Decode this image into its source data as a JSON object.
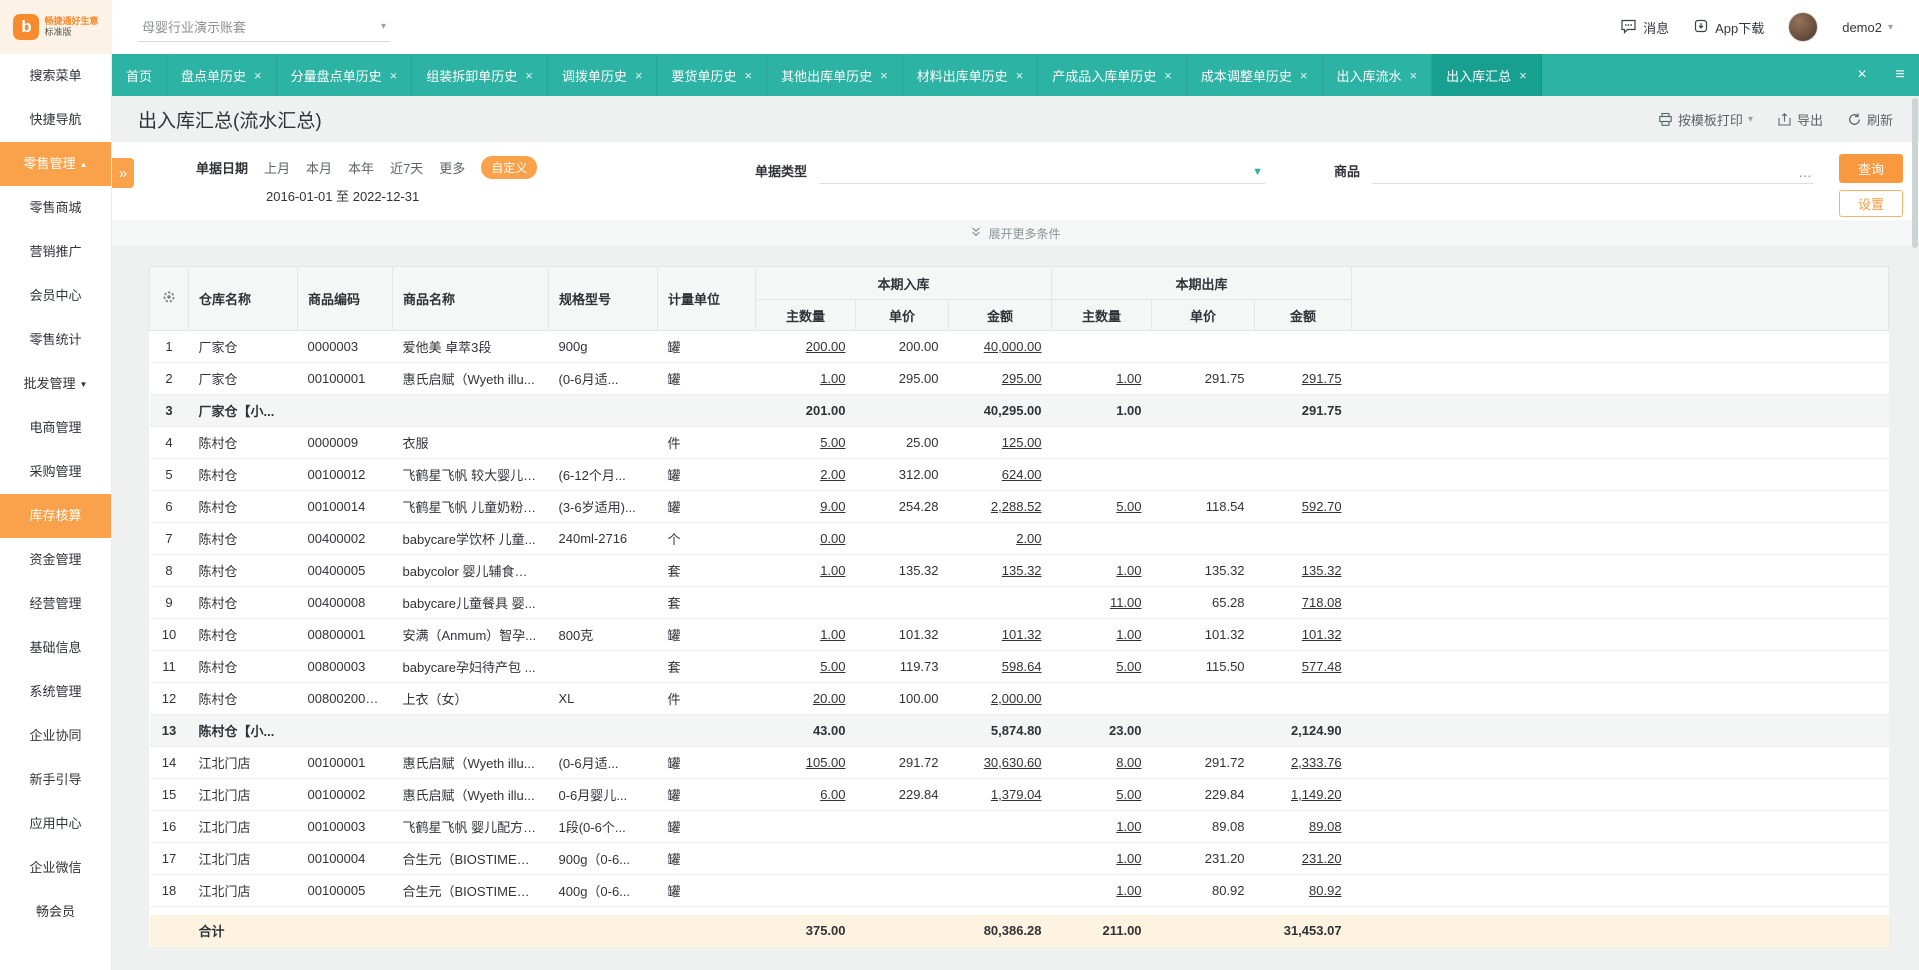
{
  "colors": {
    "accent_teal": "#2db3a4",
    "accent_teal_dark": "#17a090",
    "accent_orange": "#f9a24b"
  },
  "top_bar": {
    "logo_title": "畅捷通好生意",
    "logo_subtitle": "标准版",
    "logo_glyph": "b",
    "account_select": "母婴行业演示账套",
    "message_label": "消息",
    "app_download_label": "App下载",
    "user_name": "demo2"
  },
  "tab_bar": {
    "tabs": [
      {
        "label": "首页",
        "closable": false,
        "active": false
      },
      {
        "label": "盘点单历史",
        "closable": true,
        "active": false
      },
      {
        "label": "分量盘点单历史",
        "closable": true,
        "active": false
      },
      {
        "label": "组装拆卸单历史",
        "closable": true,
        "active": false
      },
      {
        "label": "调拨单历史",
        "closable": true,
        "active": false
      },
      {
        "label": "要货单历史",
        "closable": true,
        "active": false
      },
      {
        "label": "其他出库单历史",
        "closable": true,
        "active": false
      },
      {
        "label": "材料出库单历史",
        "closable": true,
        "active": false
      },
      {
        "label": "产成品入库单历史",
        "closable": true,
        "active": false
      },
      {
        "label": "成本调整单历史",
        "closable": true,
        "active": false
      },
      {
        "label": "出入库流水",
        "closable": true,
        "active": false
      },
      {
        "label": "出入库汇总",
        "closable": true,
        "active": true
      }
    ]
  },
  "sidebar": {
    "items": [
      {
        "label": "搜索菜单",
        "type": "plain"
      },
      {
        "label": "快捷导航",
        "type": "plain"
      },
      {
        "label": "零售管理",
        "type": "group-open"
      },
      {
        "label": "零售商城",
        "type": "sub"
      },
      {
        "label": "营销推广",
        "type": "sub"
      },
      {
        "label": "会员中心",
        "type": "sub"
      },
      {
        "label": "零售统计",
        "type": "sub"
      },
      {
        "label": "批发管理",
        "type": "group-closed"
      },
      {
        "label": "电商管理",
        "type": "plain"
      },
      {
        "label": "采购管理",
        "type": "plain"
      },
      {
        "label": "库存核算",
        "type": "active"
      },
      {
        "label": "资金管理",
        "type": "plain"
      },
      {
        "label": "经营管理",
        "type": "plain"
      },
      {
        "label": "基础信息",
        "type": "plain"
      },
      {
        "label": "系统管理",
        "type": "plain"
      },
      {
        "label": "企业协同",
        "type": "plain"
      },
      {
        "label": "新手引导",
        "type": "plain"
      },
      {
        "label": "应用中心",
        "type": "plain"
      },
      {
        "label": "企业微信",
        "type": "plain"
      },
      {
        "label": "畅会员",
        "type": "plain"
      }
    ]
  },
  "page": {
    "title": "出入库汇总(流水汇总)",
    "toolbar": {
      "print": "按模板打印",
      "export": "导出",
      "refresh": "刷新"
    }
  },
  "filters": {
    "date_label": "单据日期",
    "quick_ranges": [
      "上月",
      "本月",
      "本年",
      "近7天",
      "更多"
    ],
    "custom_label": "自定义",
    "date_range": "2016-01-01 至 2022-12-31",
    "doc_type_label": "单据类型",
    "product_label": "商品",
    "picker_ellipsis": "…",
    "search_button": "查询",
    "settings_button": "设置",
    "expand_more": "展开更多条件"
  },
  "table": {
    "headers": {
      "warehouse": "仓库名称",
      "code": "商品编码",
      "name": "商品名称",
      "spec": "规格型号",
      "unit": "计量单位",
      "in_group": "本期入库",
      "out_group": "本期出库",
      "qty": "主数量",
      "price": "单价",
      "amount": "金额"
    },
    "rows": [
      {
        "no": "1",
        "type": "data",
        "warehouse": "厂家仓",
        "code": "0000003",
        "name": "爱他美 卓萃3段",
        "spec": "900g",
        "unit": "罐",
        "in_qty": "200.00",
        "in_price": "200.00",
        "in_amount": "40,000.00",
        "out_qty": "",
        "out_price": "",
        "out_amount": ""
      },
      {
        "no": "2",
        "type": "data",
        "warehouse": "厂家仓",
        "code": "00100001",
        "name": "惠氏启赋（Wyeth illu...",
        "spec": "(0-6月适...",
        "unit": "罐",
        "in_qty": "1.00",
        "in_price": "295.00",
        "in_amount": "295.00",
        "out_qty": "1.00",
        "out_price": "291.75",
        "out_amount": "291.75"
      },
      {
        "no": "3",
        "type": "subtotal",
        "warehouse": "厂家仓【小...",
        "code": "",
        "name": "",
        "spec": "",
        "unit": "",
        "in_qty": "201.00",
        "in_price": "",
        "in_amount": "40,295.00",
        "out_qty": "1.00",
        "out_price": "",
        "out_amount": "291.75"
      },
      {
        "no": "4",
        "type": "data",
        "warehouse": "陈村仓",
        "code": "0000009",
        "name": "衣服",
        "spec": "",
        "unit": "件",
        "in_qty": "5.00",
        "in_price": "25.00",
        "in_amount": "125.00",
        "out_qty": "",
        "out_price": "",
        "out_amount": ""
      },
      {
        "no": "5",
        "type": "data",
        "warehouse": "陈村仓",
        "code": "00100012",
        "name": "飞鹤星飞帆 较大婴儿配...",
        "spec": "(6-12个月...",
        "unit": "罐",
        "in_qty": "2.00",
        "in_price": "312.00",
        "in_amount": "624.00",
        "out_qty": "",
        "out_price": "",
        "out_amount": ""
      },
      {
        "no": "6",
        "type": "data",
        "warehouse": "陈村仓",
        "code": "00100014",
        "name": "飞鹤星飞帆 儿童奶粉 4...",
        "spec": "(3-6岁适用)...",
        "unit": "罐",
        "in_qty": "9.00",
        "in_price": "254.28",
        "in_amount": "2,288.52",
        "out_qty": "5.00",
        "out_price": "118.54",
        "out_amount": "592.70"
      },
      {
        "no": "7",
        "type": "data",
        "warehouse": "陈村仓",
        "code": "00400002",
        "name": "babycare学饮杯 儿童...",
        "spec": "240ml-2716",
        "unit": "个",
        "in_qty": "0.00",
        "in_price": "",
        "in_amount": "2.00",
        "out_qty": "",
        "out_price": "",
        "out_amount": ""
      },
      {
        "no": "8",
        "type": "data",
        "warehouse": "陈村仓",
        "code": "00400005",
        "name": "babycolor 婴儿辅食机 ...",
        "spec": "",
        "unit": "套",
        "in_qty": "1.00",
        "in_price": "135.32",
        "in_amount": "135.32",
        "out_qty": "1.00",
        "out_price": "135.32",
        "out_amount": "135.32"
      },
      {
        "no": "9",
        "type": "data",
        "warehouse": "陈村仓",
        "code": "00400008",
        "name": "babycare儿童餐具 婴...",
        "spec": "",
        "unit": "套",
        "in_qty": "",
        "in_price": "",
        "in_amount": "",
        "out_qty": "11.00",
        "out_price": "65.28",
        "out_amount": "718.08"
      },
      {
        "no": "10",
        "type": "data",
        "warehouse": "陈村仓",
        "code": "00800001",
        "name": "安满（Anmum）智孕...",
        "spec": "800克",
        "unit": "罐",
        "in_qty": "1.00",
        "in_price": "101.32",
        "in_amount": "101.32",
        "out_qty": "1.00",
        "out_price": "101.32",
        "out_amount": "101.32"
      },
      {
        "no": "11",
        "type": "data",
        "warehouse": "陈村仓",
        "code": "00800003",
        "name": "babycare孕妇待产包 ...",
        "spec": "",
        "unit": "套",
        "in_qty": "5.00",
        "in_price": "119.73",
        "in_amount": "598.64",
        "out_qty": "5.00",
        "out_price": "115.50",
        "out_amount": "577.48"
      },
      {
        "no": "12",
        "type": "data",
        "warehouse": "陈村仓",
        "code": "008002000...",
        "name": "上衣（女）",
        "spec": "XL",
        "unit": "件",
        "in_qty": "20.00",
        "in_price": "100.00",
        "in_amount": "2,000.00",
        "out_qty": "",
        "out_price": "",
        "out_amount": ""
      },
      {
        "no": "13",
        "type": "subtotal",
        "warehouse": "陈村仓【小...",
        "code": "",
        "name": "",
        "spec": "",
        "unit": "",
        "in_qty": "43.00",
        "in_price": "",
        "in_amount": "5,874.80",
        "out_qty": "23.00",
        "out_price": "",
        "out_amount": "2,124.90"
      },
      {
        "no": "14",
        "type": "data",
        "warehouse": "江北门店",
        "code": "00100001",
        "name": "惠氏启赋（Wyeth illu...",
        "spec": "(0-6月适...",
        "unit": "罐",
        "in_qty": "105.00",
        "in_price": "291.72",
        "in_amount": "30,630.60",
        "out_qty": "8.00",
        "out_price": "291.72",
        "out_amount": "2,333.76"
      },
      {
        "no": "15",
        "type": "data",
        "warehouse": "江北门店",
        "code": "00100002",
        "name": "惠氏启赋（Wyeth illu...",
        "spec": "0-6月婴儿...",
        "unit": "罐",
        "in_qty": "6.00",
        "in_price": "229.84",
        "in_amount": "1,379.04",
        "out_qty": "5.00",
        "out_price": "229.84",
        "out_amount": "1,149.20"
      },
      {
        "no": "16",
        "type": "data",
        "warehouse": "江北门店",
        "code": "00100003",
        "name": "飞鹤星飞帆 婴儿配方奶...",
        "spec": "1段(0-6个...",
        "unit": "罐",
        "in_qty": "",
        "in_price": "",
        "in_amount": "",
        "out_qty": "1.00",
        "out_price": "89.08",
        "out_amount": "89.08"
      },
      {
        "no": "17",
        "type": "data",
        "warehouse": "江北门店",
        "code": "00100004",
        "name": "合生元（BIOSTIME）...",
        "spec": "900g（0-6...",
        "unit": "罐",
        "in_qty": "",
        "in_price": "",
        "in_amount": "",
        "out_qty": "1.00",
        "out_price": "231.20",
        "out_amount": "231.20"
      },
      {
        "no": "18",
        "type": "data",
        "warehouse": "江北门店",
        "code": "00100005",
        "name": "合生元（BIOSTIME）...",
        "spec": "400g（0-6...",
        "unit": "罐",
        "in_qty": "",
        "in_price": "",
        "in_amount": "",
        "out_qty": "1.00",
        "out_price": "80.92",
        "out_amount": "80.92"
      }
    ],
    "footer": {
      "label": "合计",
      "in_qty": "375.00",
      "in_amount": "80,386.28",
      "out_qty": "211.00",
      "out_amount": "31,453.07"
    }
  }
}
